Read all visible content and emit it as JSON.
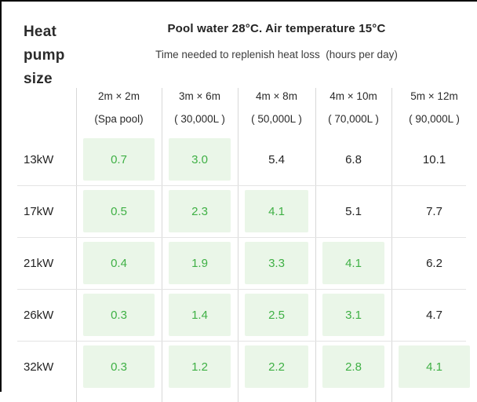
{
  "chart_data": {
    "type": "table",
    "title": "Pool water 28°C. Air temperature 15°C",
    "subtitle": "Time needed to replenish heat loss  (hours per day)",
    "row_header_label": "Heat pump size",
    "units": "hours per day",
    "columns": [
      {
        "size": "2m × 2m",
        "volume": "(Spa pool)"
      },
      {
        "size": "3m × 6m",
        "volume": "( 30,000L )"
      },
      {
        "size": "4m × 8m",
        "volume": "( 50,000L )"
      },
      {
        "size": "4m × 10m",
        "volume": "( 70,000L )"
      },
      {
        "size": "5m × 12m",
        "volume": "( 90,000L )"
      }
    ],
    "rows": [
      {
        "label": "13kW",
        "values": [
          "0.7",
          "3.0",
          "5.4",
          "6.8",
          "10.1"
        ],
        "highlighted": [
          true,
          true,
          false,
          false,
          false
        ]
      },
      {
        "label": "17kW",
        "values": [
          "0.5",
          "2.3",
          "4.1",
          "5.1",
          "7.7"
        ],
        "highlighted": [
          true,
          true,
          true,
          false,
          false
        ]
      },
      {
        "label": "21kW",
        "values": [
          "0.4",
          "1.9",
          "3.3",
          "4.1",
          "6.2"
        ],
        "highlighted": [
          true,
          true,
          true,
          true,
          false
        ]
      },
      {
        "label": "26kW",
        "values": [
          "0.3",
          "1.4",
          "2.5",
          "3.1",
          "4.7"
        ],
        "highlighted": [
          true,
          true,
          true,
          true,
          false
        ]
      },
      {
        "label": "32kW",
        "values": [
          "0.3",
          "1.2",
          "2.2",
          "2.8",
          "4.1"
        ],
        "highlighted": [
          true,
          true,
          true,
          true,
          true
        ]
      }
    ],
    "colors": {
      "highlight_bg": "#eaf6e8",
      "highlight_text": "#3fb045",
      "text_dark": "#242424"
    }
  }
}
